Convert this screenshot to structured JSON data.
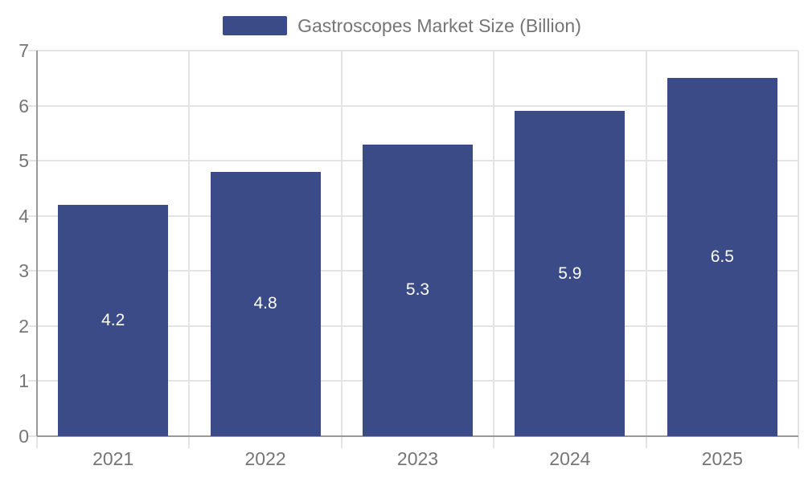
{
  "chart_data": {
    "type": "bar",
    "legend": "Gastroscopes Market Size (Billion)",
    "categories": [
      "2021",
      "2022",
      "2023",
      "2024",
      "2025"
    ],
    "values": [
      4.2,
      4.8,
      5.3,
      5.9,
      6.5
    ],
    "series": [
      {
        "name": "Gastroscopes Market Size (Billion)",
        "values": [
          4.2,
          4.8,
          5.3,
          5.9,
          6.5
        ]
      }
    ],
    "ylim": [
      0,
      7
    ],
    "ytick_interval": 1,
    "yticks": [
      0,
      1,
      2,
      3,
      4,
      5,
      6,
      7
    ],
    "grid": true,
    "legend_position": "top-center",
    "value_labels_position": "inside-center",
    "colors": {
      "bar": "#3A4B87",
      "value_label": "#FFFFFF",
      "axis_label": "#757575",
      "legend_text": "#757575",
      "gridline": "#E4E4E4",
      "axis_line": "#999999",
      "background": "#FFFFFF"
    }
  }
}
